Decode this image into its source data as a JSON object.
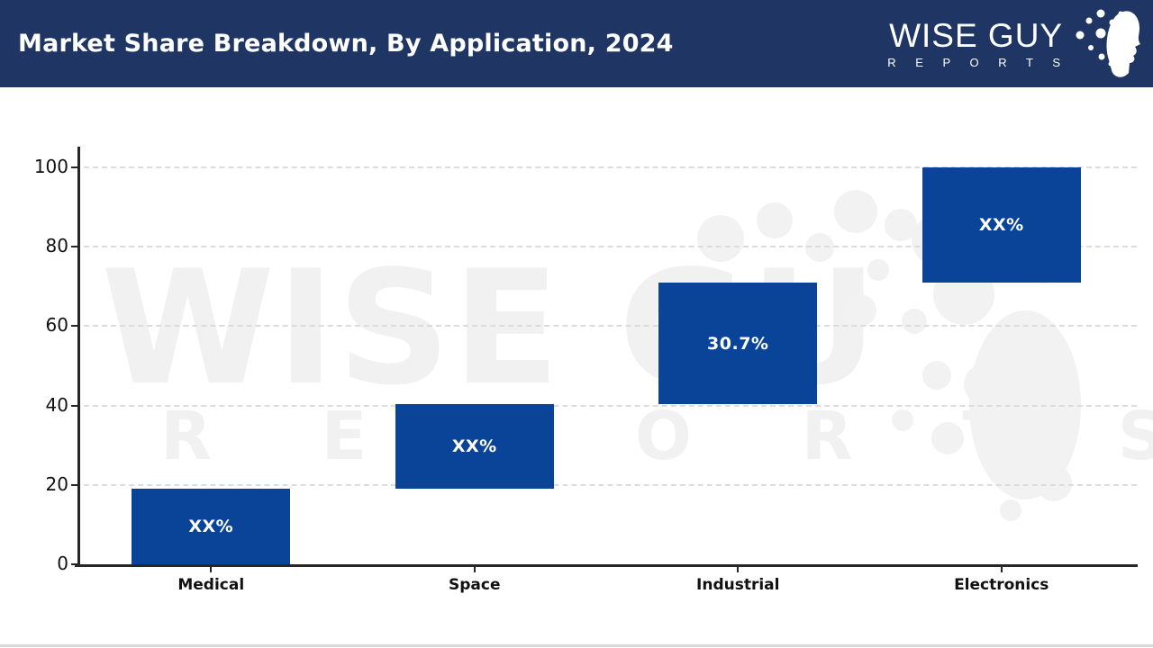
{
  "header": {
    "title": "Market Share Breakdown, By Application, 2024",
    "bg_color": "#1F3563",
    "logo": {
      "wordmark": "WISE GUY",
      "subtext": "R E P O R T S"
    }
  },
  "watermark": {
    "wordmark": "WISE GU",
    "subtext": "R E P O R T S"
  },
  "chart_data": {
    "type": "bar",
    "subtype": "floating-waterfall",
    "title": "Market Share Breakdown, By Application, 2024",
    "categories": [
      "Medical",
      "Space",
      "Industrial",
      "Electronics"
    ],
    "bars": [
      {
        "category": "Medical",
        "start": 0,
        "end": 19.1,
        "label": "XX%"
      },
      {
        "category": "Space",
        "start": 19.1,
        "end": 40.3,
        "label": "XX%"
      },
      {
        "category": "Industrial",
        "start": 40.3,
        "end": 71.0,
        "label": "30.7%"
      },
      {
        "category": "Electronics",
        "start": 71.0,
        "end": 100,
        "label": "XX%"
      }
    ],
    "xlabel": "",
    "ylabel": "",
    "ylim": [
      0,
      100
    ],
    "yticks": [
      0,
      20,
      40,
      60,
      80,
      100
    ],
    "grid": "horizontal-dashed",
    "legend": "none",
    "bar_color": "#0A4499",
    "bar_label_color": "#FFFFFF",
    "axis_color": "#262626",
    "gridline_color": "#DCDCDC"
  }
}
